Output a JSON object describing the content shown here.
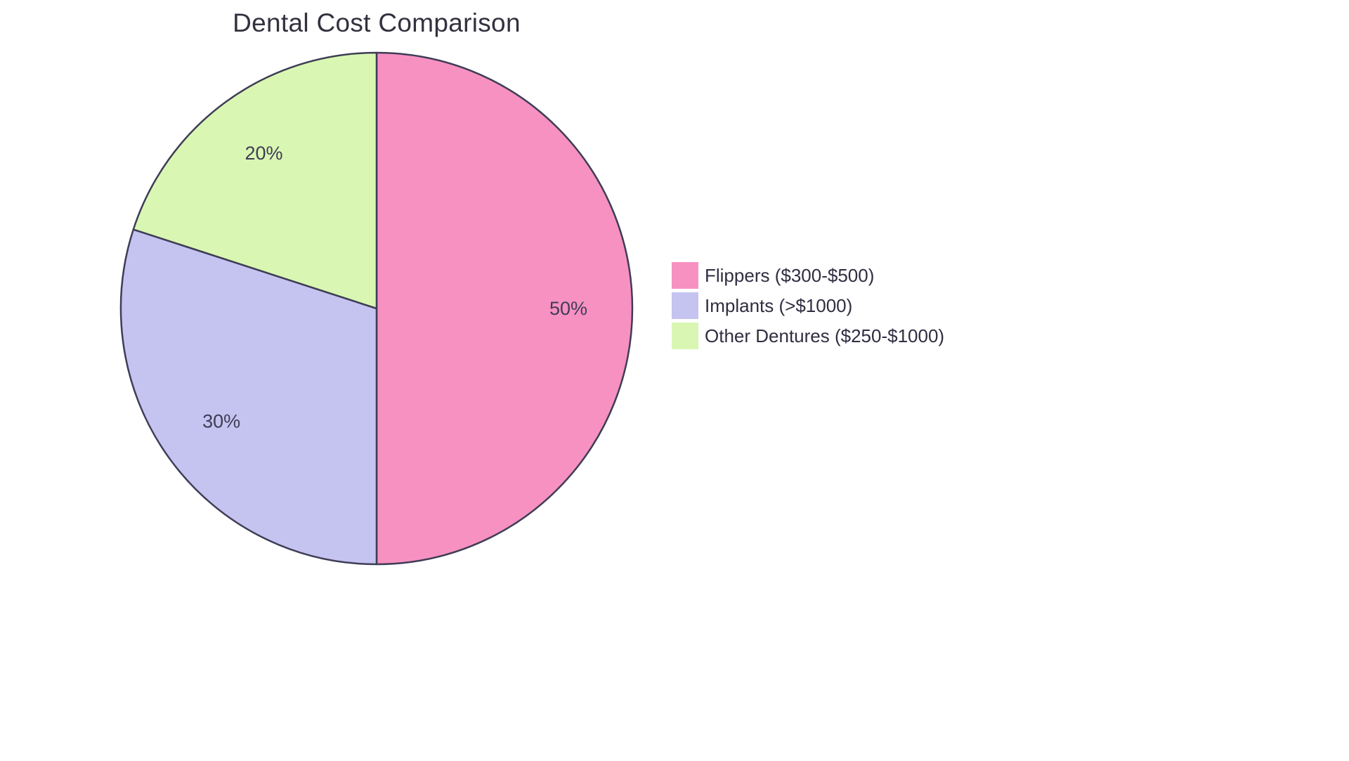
{
  "chart_data": {
    "type": "pie",
    "title": "Dental Cost Comparison",
    "legend_position": "right",
    "start_angle_deg": 0,
    "direction": "clockwise",
    "background": "#FFFFFF",
    "stroke_color": "#3F3D56",
    "text_color": "#3F3D56",
    "segments": [
      {
        "label": "Flippers ($300-$500)",
        "value": 50,
        "percent_label": "50%",
        "color": "#F791C2"
      },
      {
        "label": "Implants (>$1000)",
        "value": 30,
        "percent_label": "30%",
        "color": "#C5C3F0"
      },
      {
        "label": "Other Dentures ($250-$1000)",
        "value": 20,
        "percent_label": "20%",
        "color": "#D9F7B2"
      }
    ]
  }
}
